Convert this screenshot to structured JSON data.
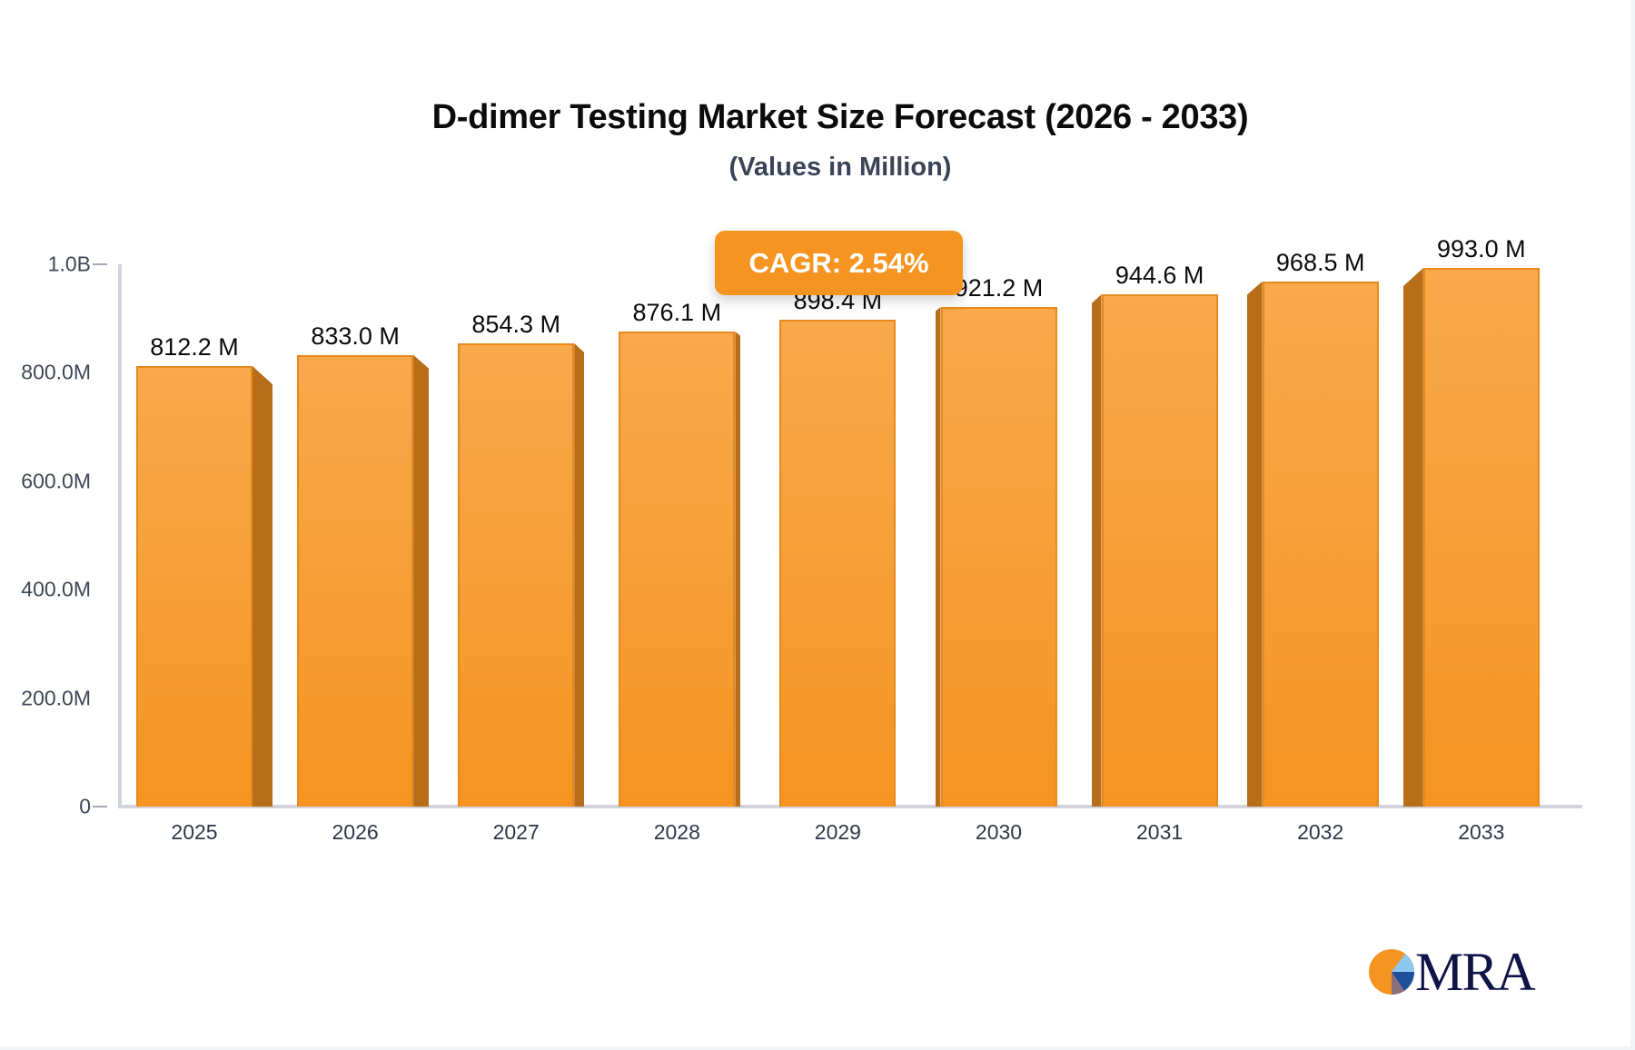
{
  "chart_data": {
    "type": "bar",
    "title": "D-dimer Testing Market Size Forecast (2026 - 2033)",
    "subtitle": "(Values in Million)",
    "categories": [
      "2025",
      "2026",
      "2027",
      "2028",
      "2029",
      "2030",
      "2031",
      "2032",
      "2033"
    ],
    "values": [
      812.2,
      833.0,
      854.3,
      876.1,
      898.4,
      921.2,
      944.6,
      968.5,
      993.0
    ],
    "value_labels": [
      "812.2 M",
      "833.0 M",
      "854.3 M",
      "876.1 M",
      "898.4 M",
      "921.2 M",
      "944.6 M",
      "968.5 M",
      "993.0 M"
    ],
    "unit": "Million",
    "xlabel": "",
    "ylabel": "",
    "ylim": [
      0,
      1000
    ],
    "yticks": [
      0,
      200,
      400,
      600,
      800,
      1000
    ],
    "ytick_labels": [
      "0",
      "200.0M",
      "400.0M",
      "600.0M",
      "800.0M",
      "1.0B"
    ],
    "grid": false,
    "legend": null,
    "annotations": [
      "CAGR: 2.54%"
    ],
    "bar_color": "#f59420"
  },
  "badge": {
    "cagr": "CAGR: 2.54%"
  },
  "brand": {
    "logo_text": "MRA",
    "logo_icon": "pie-chart-icon"
  }
}
